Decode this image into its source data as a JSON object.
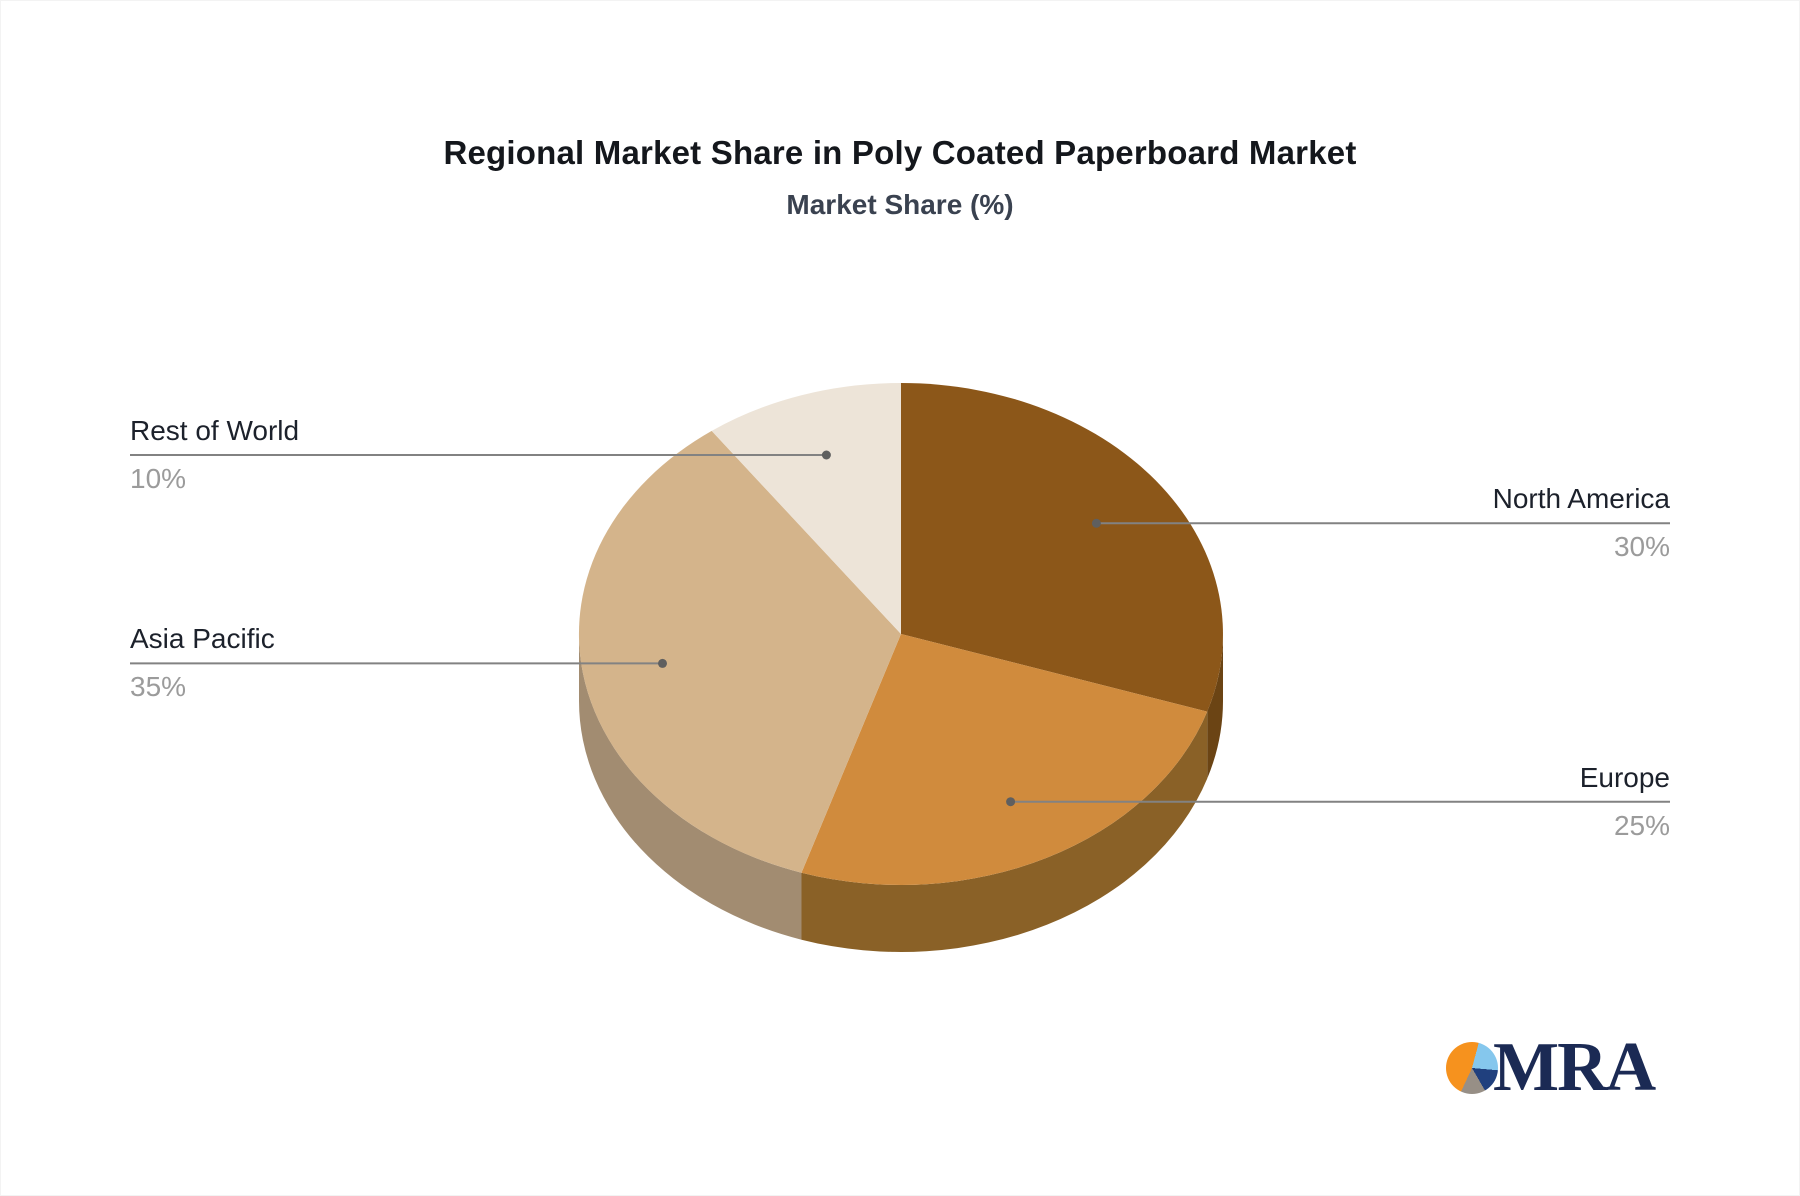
{
  "chart_data": {
    "type": "pie",
    "style_3d": true,
    "start_angle_deg": 0,
    "direction": "clockwise",
    "title": "Regional Market Share in Poly Coated Paperboard Market",
    "subtitle": "Market Share (%)",
    "unit": "%",
    "legend": "none",
    "slices": [
      {
        "label": "North America",
        "value": 30,
        "pct_label": "30%",
        "color": "#8C5719",
        "side_color": "#6B4414",
        "label_side": "right"
      },
      {
        "label": "Europe",
        "value": 25,
        "pct_label": "25%",
        "color": "#D08B3D",
        "side_color": "#8A6127",
        "label_side": "right"
      },
      {
        "label": "Asia Pacific",
        "value": 35,
        "pct_label": "35%",
        "color": "#D4B48B",
        "side_color": "#A28C71",
        "label_side": "left"
      },
      {
        "label": "Rest of World",
        "value": 10,
        "pct_label": "10%",
        "color": "#EDE4D8",
        "side_color": "#B5A894",
        "label_side": "left"
      }
    ],
    "colors": {
      "connector": "#828282",
      "connector_dot": "#5F5F5F",
      "label_text": "#1C212B",
      "pct_text": "#9B9B9B",
      "title_text": "#14171C",
      "subtitle_text": "#3A4250"
    }
  },
  "logo": {
    "text": "MRA",
    "text_color": "#1B2A54",
    "pie_colors": {
      "orange": "#F6921E",
      "light_blue": "#85C7ED",
      "navy": "#20407E",
      "gray": "#978F86"
    }
  }
}
